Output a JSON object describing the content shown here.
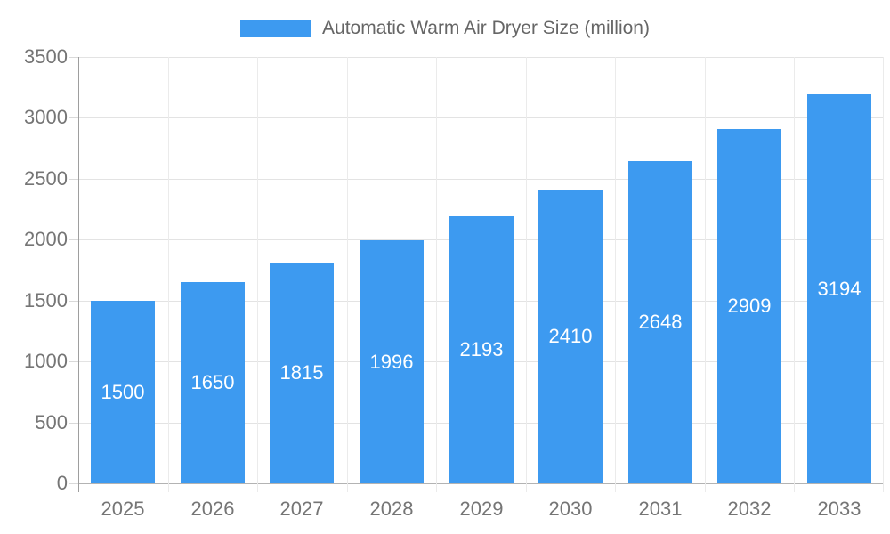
{
  "legend": {
    "label": "Automatic Warm Air Dryer Size (million)"
  },
  "chart_data": {
    "type": "bar",
    "title": "Automatic Warm Air Dryer Size (million)",
    "categories": [
      "2025",
      "2026",
      "2027",
      "2028",
      "2029",
      "2030",
      "2031",
      "2032",
      "2033"
    ],
    "values": [
      1500,
      1650,
      1815,
      1996,
      2193,
      2410,
      2648,
      2909,
      3194
    ],
    "xlabel": "",
    "ylabel": "",
    "ylim": [
      0,
      3500
    ],
    "yticks": [
      0,
      500,
      1000,
      1500,
      2000,
      2500,
      3000,
      3500
    ],
    "grid": true,
    "legend_position": "top",
    "value_label_position": "inside-center",
    "bar_color": "#3D9AF0"
  },
  "colors": {
    "bar": "#3D9AF0",
    "value_label": "#FFFFFF",
    "grid_h": "#E3E3E3",
    "grid_v": "#EBEBEB",
    "baseline": "#B3B3B3",
    "axis_line": "#9E9E9E",
    "tick": "#D9D9D9",
    "axis_text": "#757575",
    "title_text": "#666666"
  }
}
